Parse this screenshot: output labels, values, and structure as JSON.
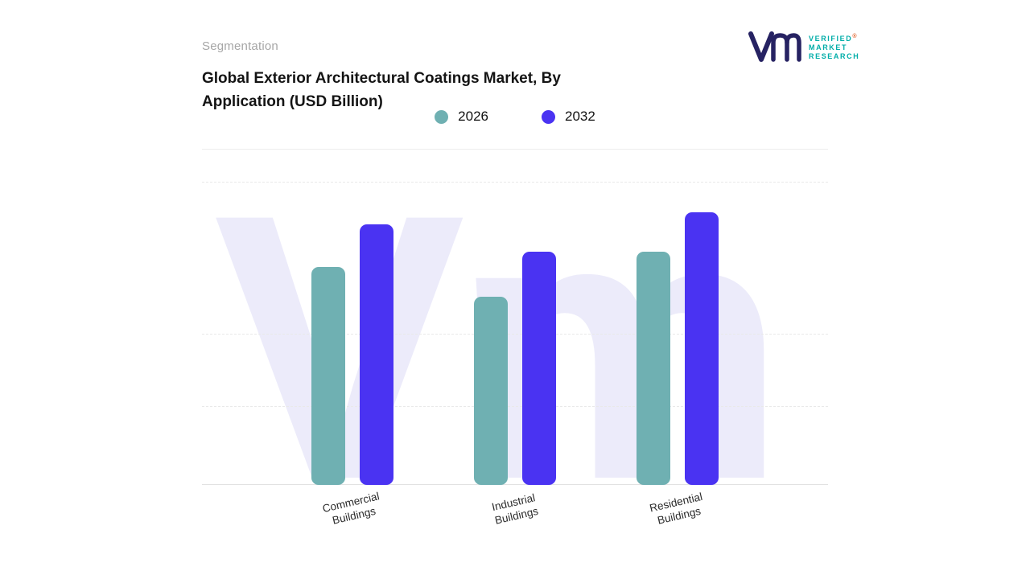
{
  "header": {
    "eyebrow": "Segmentation",
    "title_line1": "Global Exterior Architectural Coatings Market, By",
    "title_line2": "Application (USD Billion)"
  },
  "logo": {
    "line1": "VERIFIED",
    "line2": "MARKET",
    "line3": "RESEARCH",
    "registered_mark": "®"
  },
  "legend": [
    {
      "label": "2026",
      "color": "#6FB0B2"
    },
    {
      "label": "2032",
      "color": "#4A33F2"
    }
  ],
  "watermark_text": "Vm",
  "colors": {
    "teal": "#6FB0B2",
    "purple": "#4A33F2",
    "watermark": "#ECEBFA",
    "navy_logo": "#262262",
    "teal_logo": "#00ADA8"
  },
  "chart_data": {
    "type": "bar",
    "title": "Global Exterior Architectural Coatings Market, By Application (USD Billion)",
    "categories": [
      "Commercial Buildings",
      "Industrial Buildings",
      "Residential Buildings"
    ],
    "series": [
      {
        "name": "2026",
        "color": "#6FB0B2",
        "values": [
          72,
          62,
          77
        ]
      },
      {
        "name": "2032",
        "color": "#4A33F2",
        "values": [
          86,
          77,
          90
        ]
      }
    ],
    "xlabel": "",
    "ylabel": "",
    "ylim": [
      0,
      100
    ],
    "grid": "dashed-horizontal",
    "gridline_positions_pct": [
      0,
      50,
      74
    ],
    "legend_position": "top-center",
    "value_labels": false,
    "axis_tick_labels_visible": false,
    "note": "No numeric axis labels visible; values estimated from relative bar heights on a 0-100 scale."
  }
}
